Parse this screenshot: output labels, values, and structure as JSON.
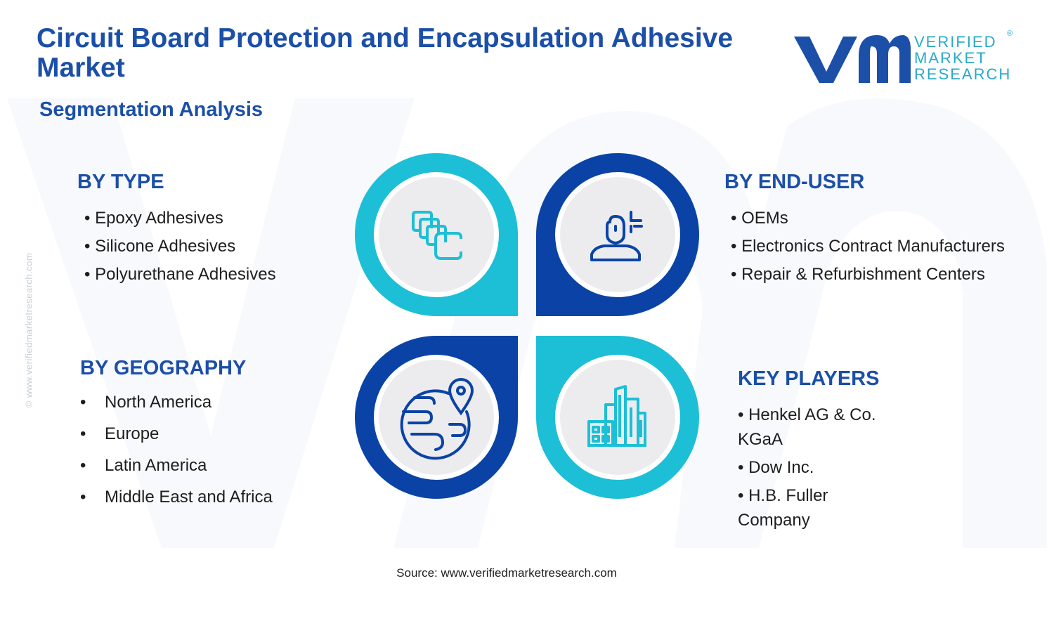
{
  "header": {
    "title": "Circuit Board Protection and Encapsulation Adhesive Market",
    "subtitle": "Segmentation Analysis"
  },
  "logo": {
    "line1": "VERIFIED",
    "line2": "MARKET",
    "line3": "RESEARCH",
    "registered": "®",
    "colors": {
      "dark": "#1b4fa8",
      "light": "#28a9c8"
    }
  },
  "watermark": {
    "side_text": "© www.verifiedmarketresearch.com"
  },
  "segments": {
    "type": {
      "heading": "BY TYPE",
      "items": [
        "• Epoxy Adhesives",
        "• Silicone Adhesives",
        "• Polyurethane Adhesives"
      ]
    },
    "end_user": {
      "heading": "BY END-USER",
      "items": [
        "• OEMs",
        "• Electronics Contract Manufacturers",
        "• Repair & Refurbishment Centers"
      ]
    },
    "geography": {
      "heading": "BY GEOGRAPHY",
      "bullet": "•",
      "items": [
        "North America",
        "Europe",
        "Latin America",
        "Middle East and Africa"
      ]
    },
    "key_players": {
      "heading": "KEY PLAYERS",
      "items": [
        "• Henkel AG & Co. KGaA",
        "• Dow Inc.",
        "• H.B. Fuller Company"
      ]
    }
  },
  "icons": {
    "top_left": "stacked-layers-icon",
    "top_right": "user-profile-icon",
    "bottom_left": "globe-location-icon",
    "bottom_right": "city-buildings-icon"
  },
  "palette": {
    "dark_blue": "#0a43a5",
    "cyan": "#1cbfd6",
    "disc_grey": "#ececee",
    "heading_blue": "#1b4fa8"
  },
  "footer": {
    "source": "Source: www.verifiedmarketresearch.com"
  }
}
